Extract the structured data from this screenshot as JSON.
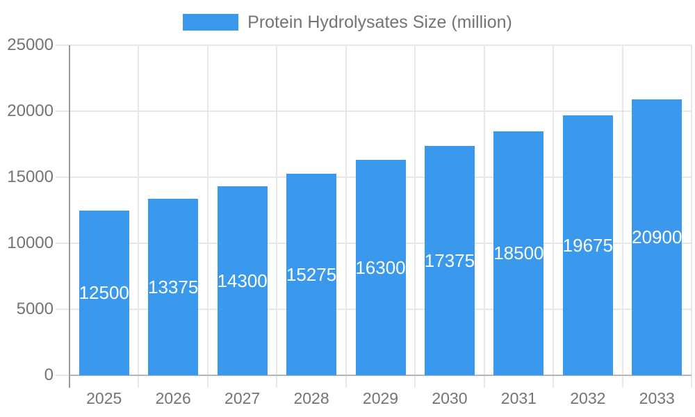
{
  "chart_data": {
    "type": "bar",
    "title": "Protein Hydrolysates Size (million)",
    "categories": [
      "2025",
      "2026",
      "2027",
      "2028",
      "2029",
      "2030",
      "2031",
      "2032",
      "2033"
    ],
    "series": [
      {
        "name": "Protein Hydrolysates Size (million)",
        "color": "#3a99ec",
        "values": [
          12500,
          13375,
          14300,
          15275,
          16300,
          17375,
          18500,
          19675,
          20900
        ]
      }
    ],
    "xlabel": "",
    "ylabel": "",
    "ylim": [
      0,
      25000
    ],
    "yticks": [
      0,
      5000,
      10000,
      15000,
      20000,
      25000
    ],
    "grid": true,
    "legend_position": "top",
    "value_label_position": "inside-center"
  },
  "legend": {
    "label": "Protein Hydrolysates Size (million)",
    "swatch_color": "#3a99ec"
  },
  "colors": {
    "bar": "#3a99ec",
    "bar_label_text": "#ffffff",
    "axis_text": "#747474",
    "gridline": "#e7e7e7",
    "y_axis_line": "#999999",
    "x_axis_line": "#b5b5b5",
    "background": "#ffffff"
  }
}
